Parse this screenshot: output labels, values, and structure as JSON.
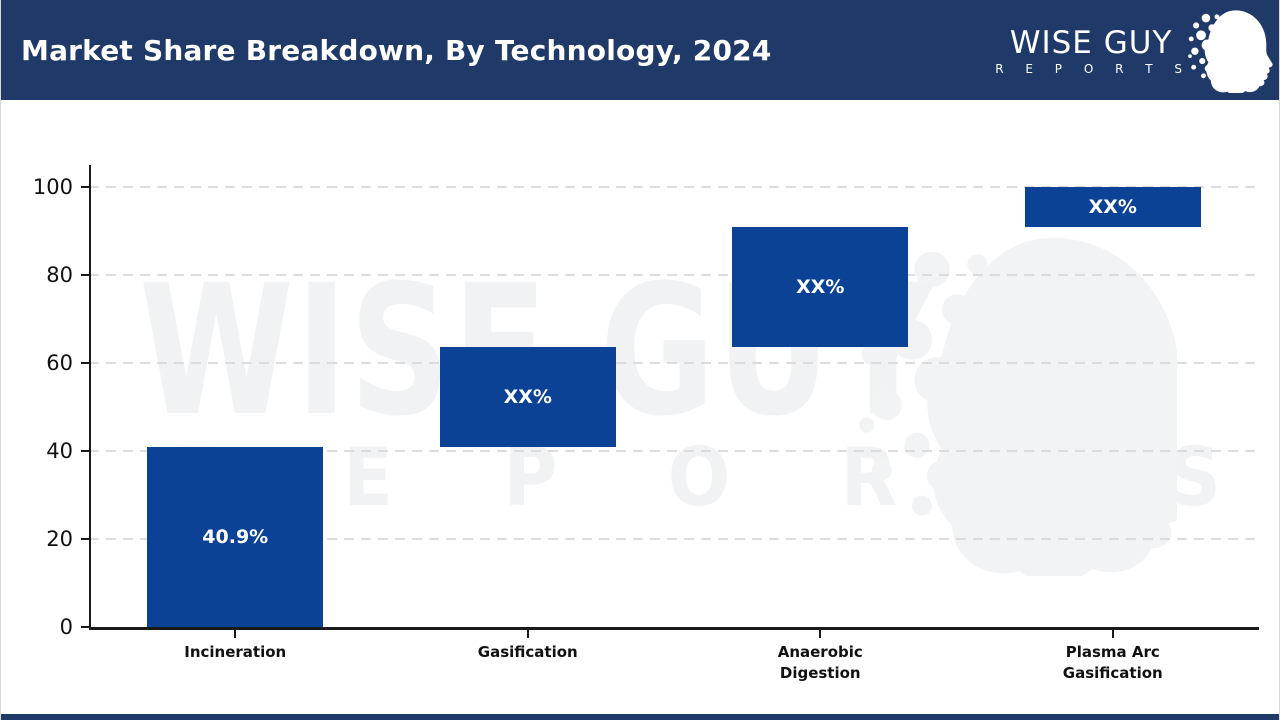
{
  "header": {
    "title": "Market Share Breakdown, By Technology, 2024",
    "logo": {
      "line1": "WISE GUY",
      "line2": "R E P O R T S"
    }
  },
  "watermark": {
    "line1": "WISE GUY",
    "line2": "R E P O R T S"
  },
  "colors": {
    "header_bg": "#1f3a68",
    "bar": "#0b4296",
    "grid": "#dcdcdc",
    "axis": "#1a1a1a",
    "watermark": "#f1f2f4"
  },
  "chart_data": {
    "type": "bar",
    "subtype": "waterfall (floating segment bars)",
    "title": "Market Share Breakdown, By Technology, 2024",
    "xlabel": "",
    "ylabel": "",
    "categories": [
      "Incineration",
      "Gasification",
      "Anaerobic\nDigestion",
      "Plasma Arc\nGasification"
    ],
    "bars": [
      {
        "category": "Incineration",
        "start": 0,
        "end": 40.9,
        "value": 40.9,
        "label": "40.9%"
      },
      {
        "category": "Gasification",
        "start": 40.9,
        "end": 63.6,
        "value": 22.7,
        "label": "XX%"
      },
      {
        "category": "Anaerobic\nDigestion",
        "start": 63.6,
        "end": 90.9,
        "value": 27.3,
        "label": "XX%"
      },
      {
        "category": "Plasma Arc\nGasification",
        "start": 90.9,
        "end": 100,
        "value": 9.1,
        "label": "XX%"
      }
    ],
    "yticks": [
      0,
      20,
      40,
      60,
      80,
      100
    ],
    "ylim": [
      0,
      104.5
    ],
    "grid": "horizontal dashed",
    "legend": "none",
    "bar_color": "#0b4296",
    "bar_label_color": "#ffffff"
  }
}
